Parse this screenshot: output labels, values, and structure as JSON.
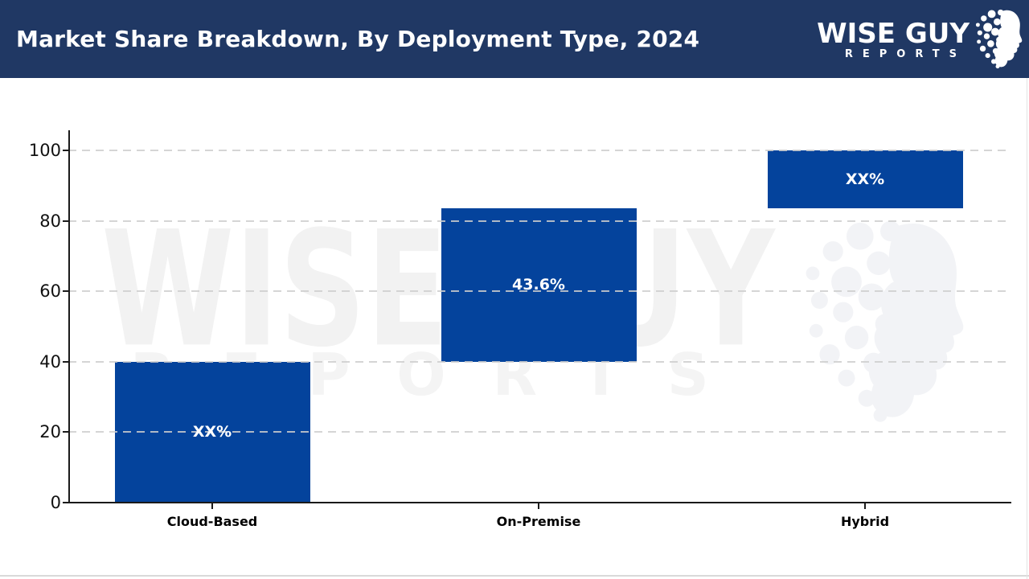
{
  "header": {
    "title": "Market Share Breakdown, By Deployment Type, 2024",
    "logo": {
      "name": "WISE GUY",
      "sub": "REPORTS"
    }
  },
  "watermark": {
    "big": "WISE GUY",
    "sub": "REPORTS"
  },
  "chart_data": {
    "type": "bar",
    "subtype": "floating-segment-bars",
    "title": "Market Share Breakdown, By Deployment Type, 2024",
    "categories": [
      "Cloud-Based",
      "On-Premise",
      "Hybrid"
    ],
    "bars": [
      {
        "category": "Cloud-Based",
        "from": 0,
        "to": 40,
        "label": "XX%"
      },
      {
        "category": "On-Premise",
        "from": 40,
        "to": 83.6,
        "label": "43.6%"
      },
      {
        "category": "Hybrid",
        "from": 83.6,
        "to": 100,
        "label": "XX%"
      }
    ],
    "segment_heights_pct": [
      40,
      43.6,
      16.4
    ],
    "yticks": [
      0,
      20,
      40,
      60,
      80,
      100
    ],
    "ylim": [
      0,
      100
    ],
    "xlabel": "",
    "ylabel": "",
    "legend": "none",
    "grid": "horizontal-dashed"
  },
  "colors": {
    "header_bg": "#203864",
    "bar_fill": "#04439c",
    "axis": "#1a1a1a",
    "grid_line": "#cecece",
    "watermark": "#f2f2f2",
    "title_text": "#ffffff"
  }
}
